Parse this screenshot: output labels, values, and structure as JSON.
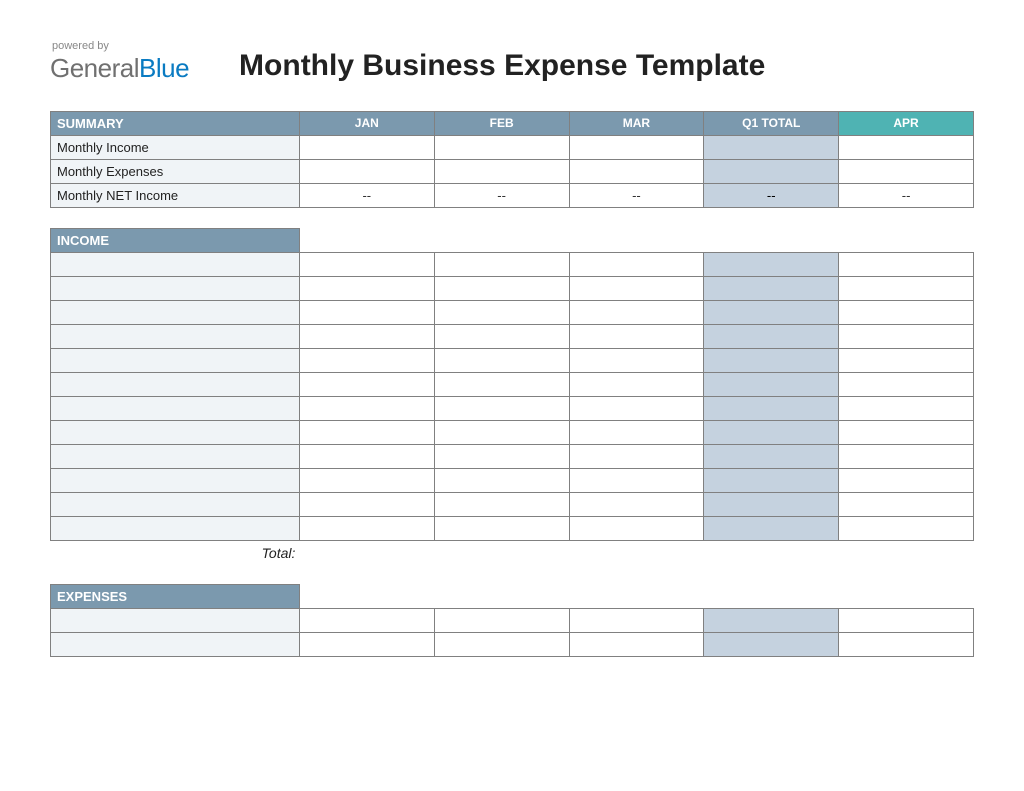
{
  "logo": {
    "powered_by": "powered by",
    "part1": "General",
    "part2": "Blue"
  },
  "title": "Monthly Business Expense Template",
  "colors": {
    "header_bg": "#7b99ae",
    "header_fg": "#ffffff",
    "apr_header_bg": "#4fb3b3",
    "label_bg": "#f0f4f7",
    "q1_cell_bg": "#c5d2df",
    "border": "#808080",
    "logo_gray": "#707070",
    "logo_blue": "#0a7bc2"
  },
  "columns": {
    "jan": "JAN",
    "feb": "FEB",
    "mar": "MAR",
    "q1": "Q1 TOTAL",
    "apr": "APR"
  },
  "summary": {
    "header": "SUMMARY",
    "rows": [
      {
        "label": "Monthly Income",
        "jan": "",
        "feb": "",
        "mar": "",
        "q1": "",
        "apr": ""
      },
      {
        "label": "Monthly Expenses",
        "jan": "",
        "feb": "",
        "mar": "",
        "q1": "",
        "apr": ""
      },
      {
        "label": "Monthly NET Income",
        "jan": "--",
        "feb": "--",
        "mar": "--",
        "q1": "--",
        "apr": "--"
      }
    ]
  },
  "income": {
    "header": "INCOME",
    "row_count": 12,
    "total_label": "Total:"
  },
  "expenses": {
    "header": "EXPENSES",
    "row_count": 2
  }
}
